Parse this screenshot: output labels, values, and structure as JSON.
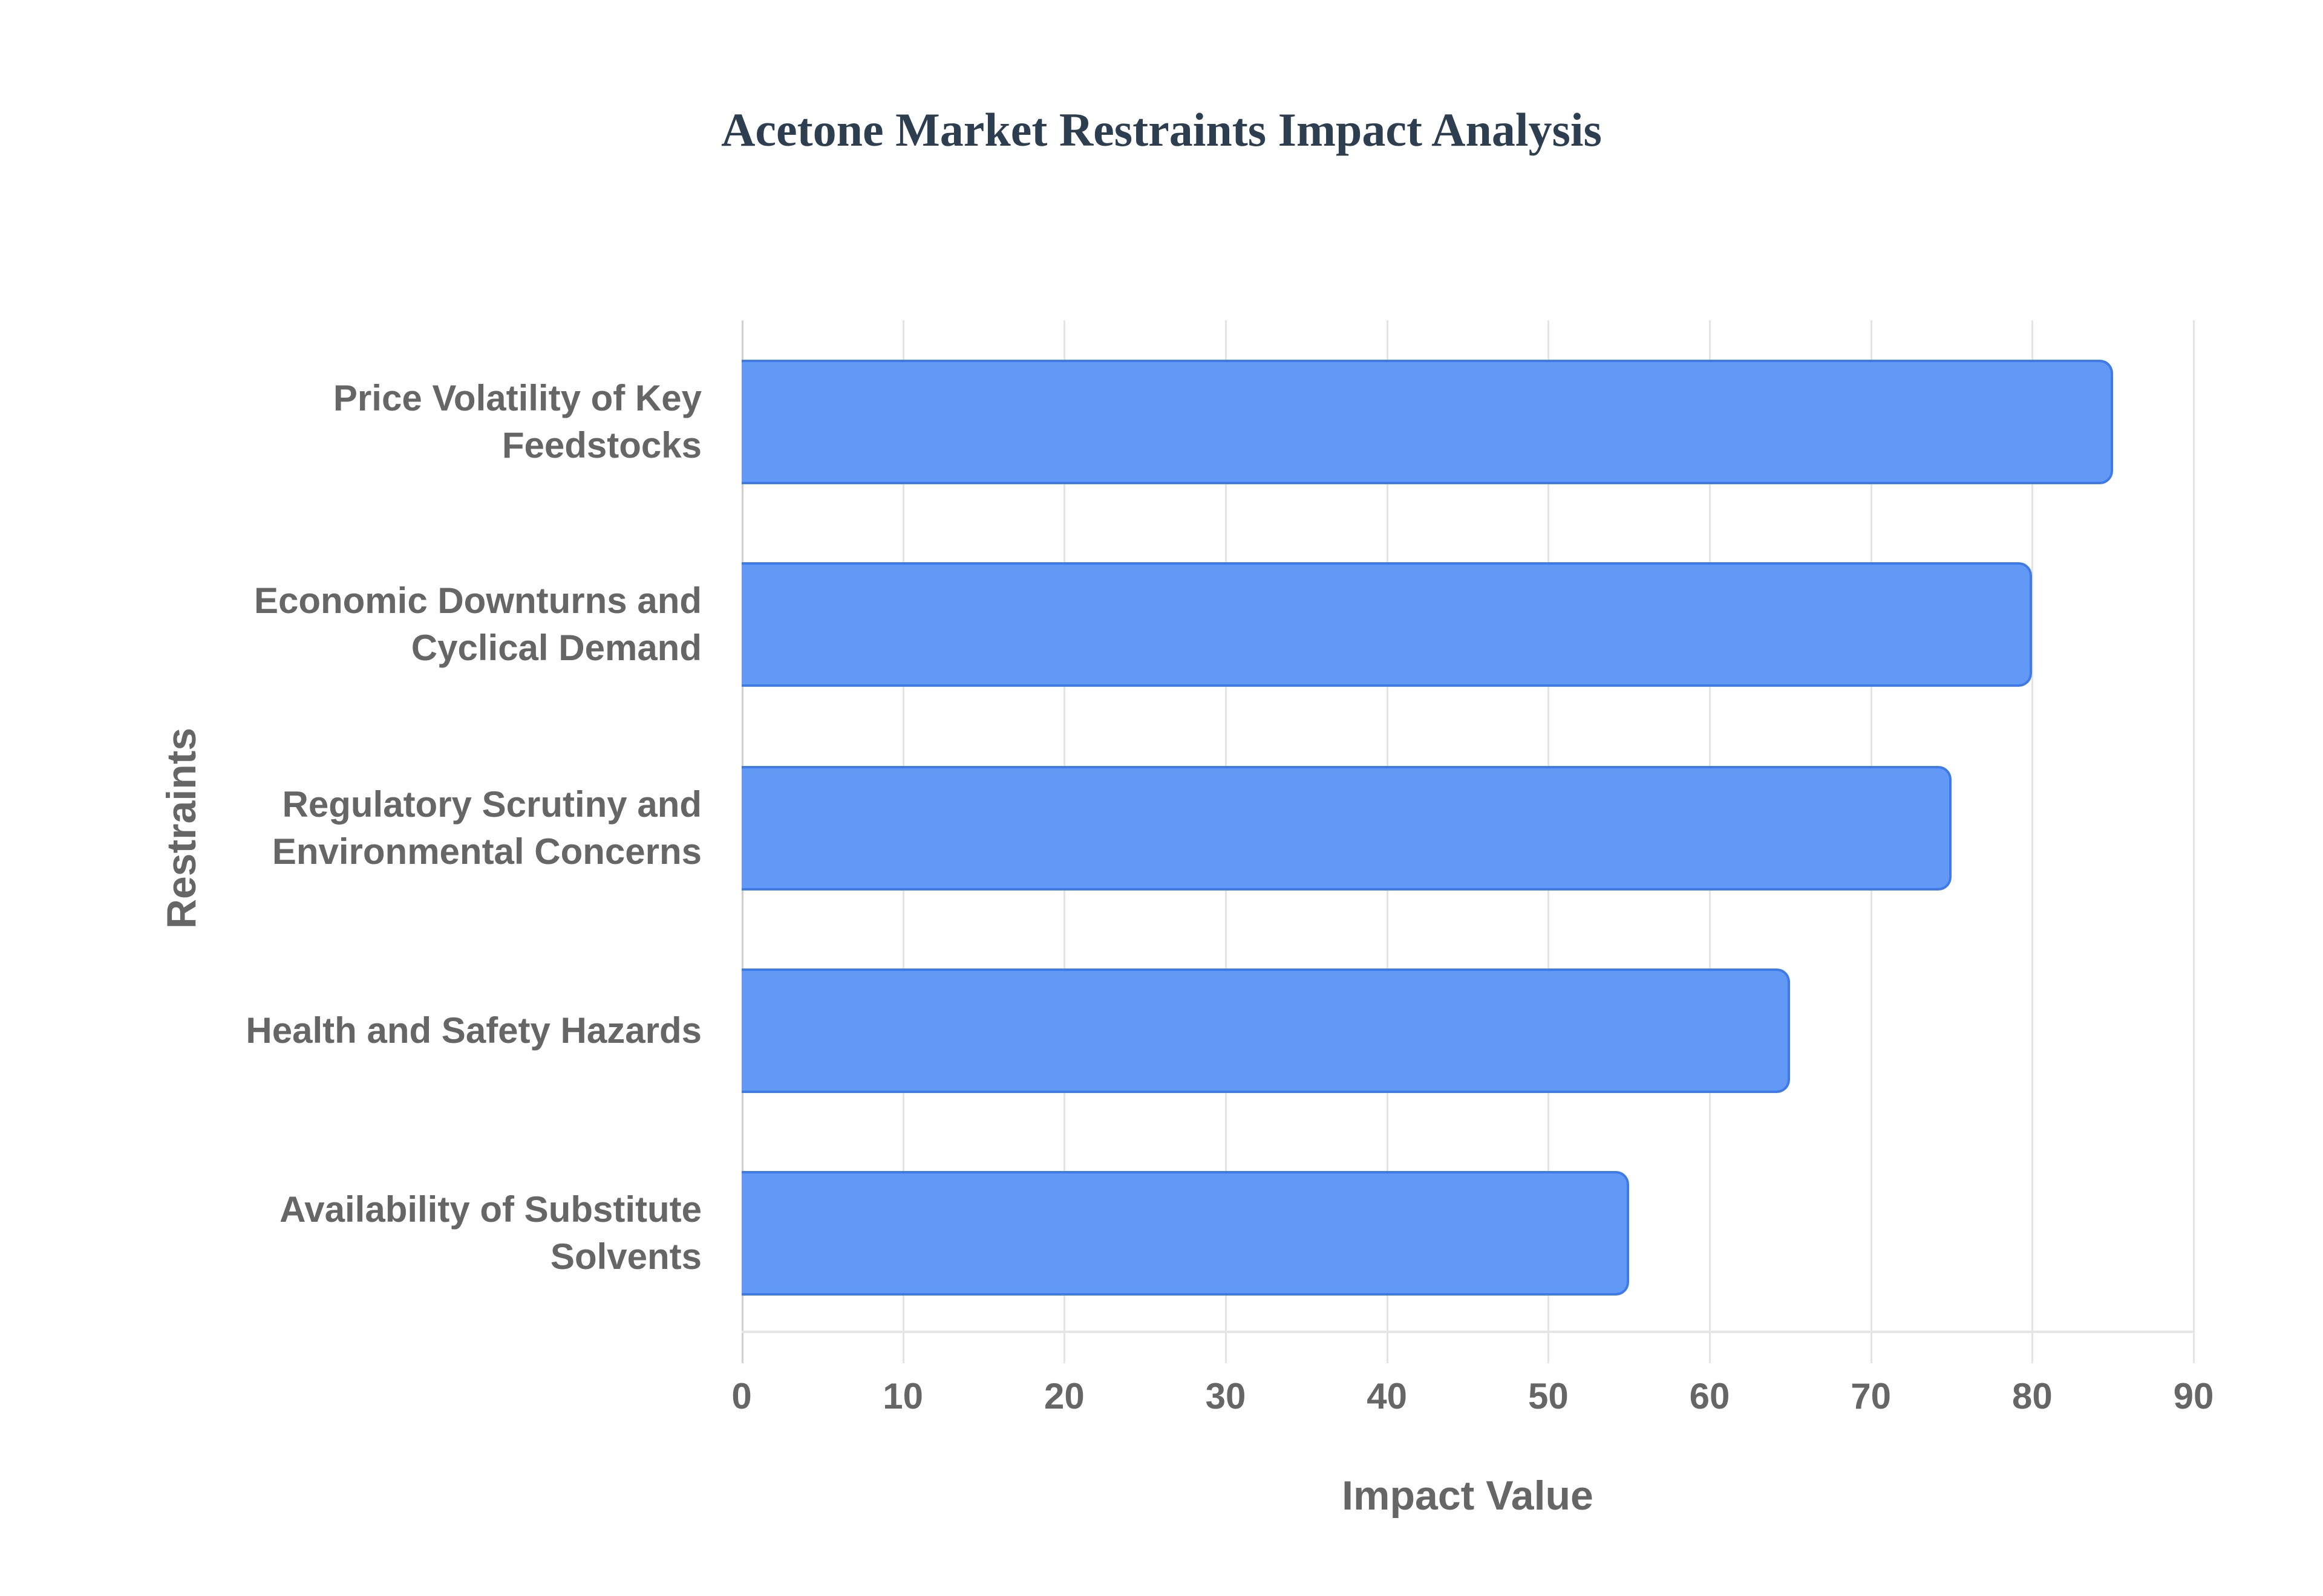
{
  "chart_data": {
    "type": "bar",
    "orientation": "horizontal",
    "title": "Acetone Market Restraints Impact Analysis",
    "xlabel": "Impact Value",
    "ylabel": "Restraints",
    "categories": [
      "Price Volatility of Key Feedstocks",
      "Economic Downturns and Cyclical Demand",
      "Regulatory Scrutiny and Environmental Concerns",
      "Health and Safety Hazards",
      "Availability of Substitute Solvents"
    ],
    "category_lines": [
      [
        "Price Volatility of Key",
        "Feedstocks"
      ],
      [
        "Economic Downturns and",
        "Cyclical Demand"
      ],
      [
        "Regulatory Scrutiny and",
        "Environmental Concerns"
      ],
      [
        "Health and Safety Hazards"
      ],
      [
        "Availability of Substitute",
        "Solvents"
      ]
    ],
    "values": [
      85,
      80,
      75,
      65,
      55
    ],
    "xlim": [
      0,
      90
    ],
    "xticks": [
      "0",
      "10",
      "20",
      "30",
      "40",
      "50",
      "60",
      "70",
      "80",
      "90"
    ],
    "grid": true,
    "legend": "none",
    "colors": {
      "bar_fill": "#6199f4",
      "bar_border": "#3f7be8",
      "title": "#2c3e50",
      "labels": "#666666"
    }
  }
}
